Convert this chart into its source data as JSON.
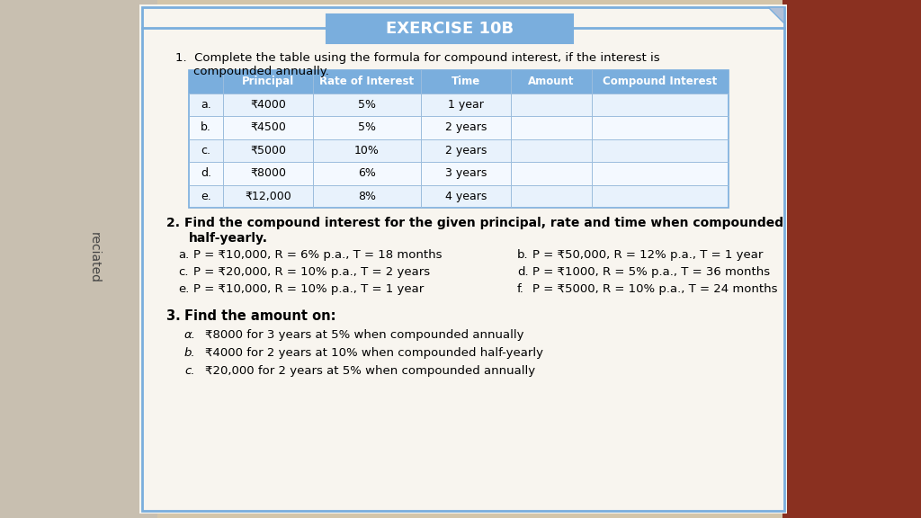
{
  "title": "EXERCISE 10B",
  "title_bg": "#7aaedd",
  "title_color": "white",
  "table_headers": [
    "",
    "Principal",
    "Rate of Interest",
    "Time",
    "Amount",
    "Compound Interest"
  ],
  "table_rows": [
    [
      "a.",
      "₹4000",
      "5%",
      "1 year",
      "",
      ""
    ],
    [
      "b.",
      "₹4500",
      "5%",
      "2 years",
      "",
      ""
    ],
    [
      "c.",
      "₹5000",
      "10%",
      "2 years",
      "",
      ""
    ],
    [
      "d.",
      "₹8000",
      "6%",
      "3 years",
      "",
      ""
    ],
    [
      "e.",
      "₹12,000",
      "8%",
      "4 years",
      "",
      ""
    ]
  ],
  "header_bg": "#7aaedd",
  "row_bg": "#f0f6ff",
  "page_bg": "#d4c5a9",
  "paper_bg": "#f8f5ef",
  "border_color": "#7aaedd",
  "q2_items": [
    [
      "a.",
      "P = ₹10,000, R = 6% p.a., T = 18 months",
      "b.",
      "P = ₹50,000, R = 12% p.a., T = 1 year"
    ],
    [
      "c.",
      "P = ₹20,000, R = 10% p.a., T = 2 years",
      "d.",
      "P = ₹1000, R = 5% p.a., T = 36 months"
    ],
    [
      "e.",
      "P = ₹10,000, R = 10% p.a., T = 1 year",
      "f.",
      "P = ₹5000, R = 10% p.a., T = 24 months"
    ]
  ],
  "q3_items": [
    [
      "α.",
      "₹8000 for 3 years at 5% when compounded annually"
    ],
    [
      "b.",
      "₹4000 for 2 years at 10% when compounded half-yearly"
    ],
    [
      "c.",
      "₹20,000 for 2 years at 5% when compounded annually"
    ]
  ]
}
